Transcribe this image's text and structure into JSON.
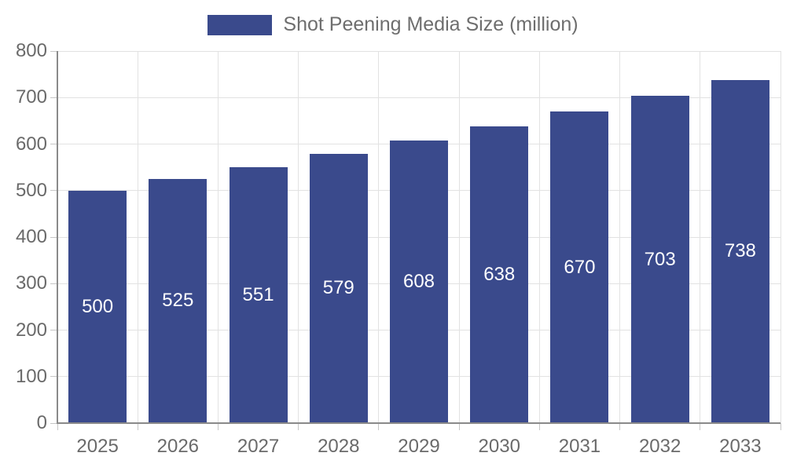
{
  "chart_data": {
    "type": "bar",
    "title": "",
    "legend_label": "Shot Peening Media Size (million)",
    "legend_position": "top-center",
    "categories": [
      "2025",
      "2026",
      "2027",
      "2028",
      "2029",
      "2030",
      "2031",
      "2032",
      "2033"
    ],
    "values": [
      500,
      525,
      551,
      579,
      608,
      638,
      670,
      703,
      738
    ],
    "value_labels_shown": true,
    "xlabel": "",
    "ylabel": "",
    "ylim": [
      0,
      800
    ],
    "yticks": [
      0,
      100,
      200,
      300,
      400,
      500,
      600,
      700,
      800
    ],
    "grid": true,
    "colors": {
      "bar": "#3A4A8C",
      "value_label": "#FFFFFF",
      "axis_line": "#8A8A8A",
      "gridline": "#E2E2E2",
      "tick_mark": "#C6C6C6",
      "tick_label": "#6A6A6A",
      "legend_text": "#6E6E6E",
      "background": "#FFFFFF"
    }
  }
}
